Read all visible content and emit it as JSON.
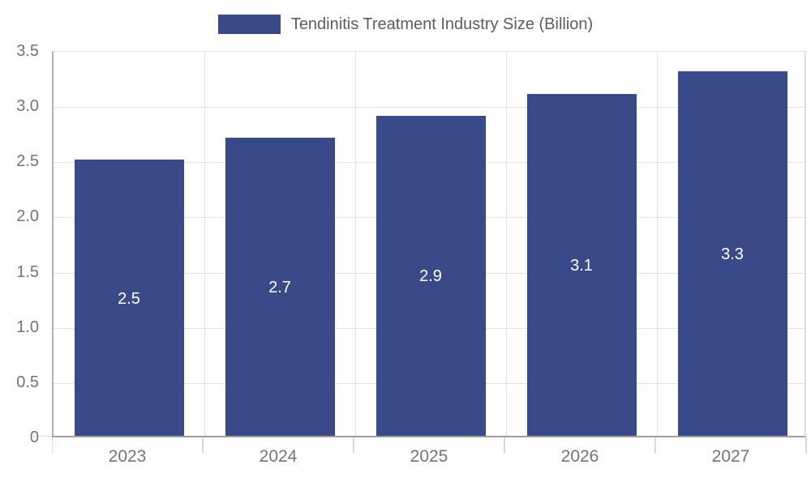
{
  "chart_data": {
    "type": "bar",
    "title": "Tendinitis Treatment Industry Size (Billion)",
    "categories": [
      "2023",
      "2024",
      "2025",
      "2026",
      "2027"
    ],
    "values": [
      2.5,
      2.7,
      2.9,
      3.1,
      3.3
    ],
    "bar_labels": [
      "2.5",
      "2.7",
      "2.9",
      "3.1",
      "3.3"
    ],
    "xlabel": "",
    "ylabel": "",
    "ylim": [
      0,
      3.5
    ],
    "y_tick_values": [
      0,
      0.5,
      1.0,
      1.5,
      2.0,
      2.5,
      3.0,
      3.5
    ],
    "y_tick_labels": [
      "0",
      "0.5",
      "1.0",
      "1.5",
      "2.0",
      "2.5",
      "3.0",
      "3.5"
    ],
    "grid": true,
    "legend_position": "top-center",
    "colors": {
      "bar": "#3A4A88",
      "bar_label_text": "#ffffff",
      "grid": "#e2e2e2",
      "axis": "#9e9e9e",
      "tick": "#d9d9d9",
      "axis_label_text": "#757575",
      "legend_text": "#5d5d5d",
      "background": "#ffffff"
    }
  }
}
